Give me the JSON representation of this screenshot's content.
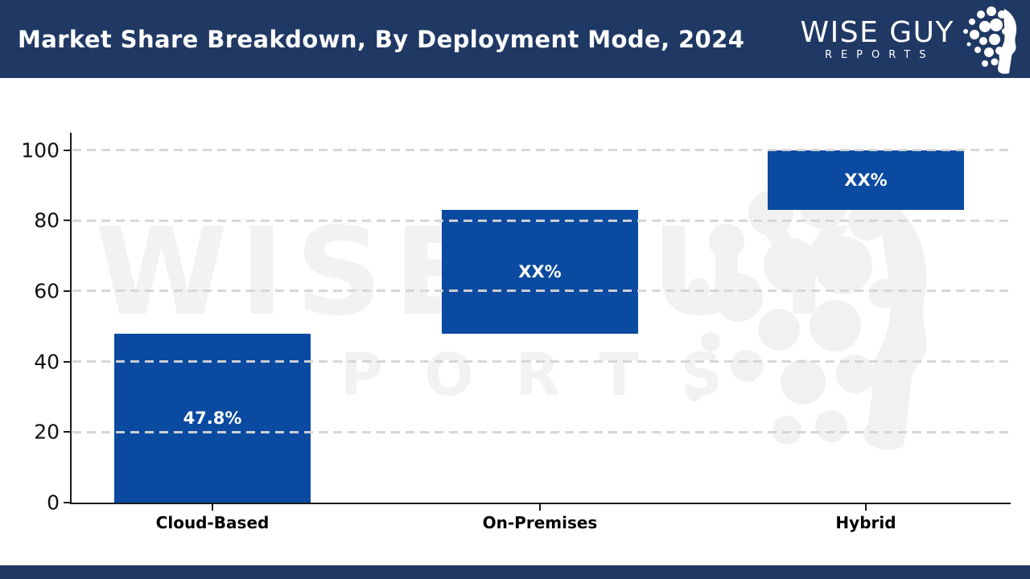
{
  "header": {
    "title": "Market Share Breakdown, By Deployment Mode, 2024",
    "logo": {
      "line1": "WISE GUY",
      "line2": "REPORTS"
    }
  },
  "watermark": {
    "line1": "WISE GUY",
    "line2": "REPORTS"
  },
  "chart_data": {
    "type": "bar",
    "subtype": "floating-waterfall",
    "title": "Market Share Breakdown, By Deployment Mode, 2024",
    "categories": [
      "Cloud-Based",
      "On-Premises",
      "Hybrid"
    ],
    "bars": [
      {
        "category": "Cloud-Based",
        "start": 0,
        "end": 47.8,
        "label": "47.8%"
      },
      {
        "category": "On-Premises",
        "start": 47.8,
        "end": 83,
        "label": "XX%"
      },
      {
        "category": "Hybrid",
        "start": 83,
        "end": 100,
        "label": "XX%"
      }
    ],
    "xlabel": "",
    "ylabel": "",
    "ylim": [
      0,
      100
    ],
    "yticks": [
      0,
      20,
      40,
      60,
      80,
      100
    ],
    "grid": "horizontal-dashed",
    "legend": "none",
    "bar_color": "#0a4aa0",
    "bar_label_color": "#ffffff"
  },
  "colors": {
    "header_bg": "#1f3864",
    "footer_bg": "#1f3864",
    "bar": "#0a4aa0",
    "gridline": "#d5d5d5",
    "axis": "#1a1a1a",
    "watermark": "#f2f2f2"
  }
}
